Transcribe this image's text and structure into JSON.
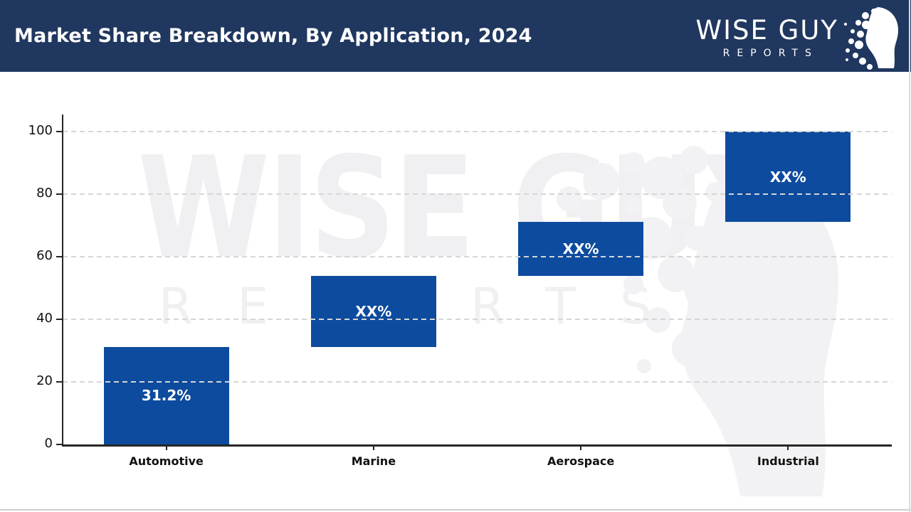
{
  "header": {
    "title": "Market Share Breakdown, By Application, 2024",
    "logo": {
      "line1": "WISE GUY",
      "line2": "REPORTS"
    }
  },
  "watermark": {
    "line1": "WISE GUY",
    "line2": "REPORTS"
  },
  "colors": {
    "header_bg": "#20375f",
    "bar": "#0d4b9e",
    "grid": "#d6d6d6",
    "axis": "#262626",
    "bar_label": "#ffffff",
    "title_text": "#ffffff",
    "tick_label": "#111111",
    "watermark": "#f0f0f2"
  },
  "chart_data": {
    "type": "waterfall",
    "title": "Market Share Breakdown, By Application, 2024",
    "categories": [
      "Automotive",
      "Marine",
      "Aerospace",
      "Industrial"
    ],
    "segments": [
      {
        "category": "Automotive",
        "start": 0,
        "end": 31.2,
        "label": "31.2%"
      },
      {
        "category": "Marine",
        "start": 31.2,
        "end": 53.9,
        "label": "XX%"
      },
      {
        "category": "Aerospace",
        "start": 53.9,
        "end": 71.1,
        "label": "XX%"
      },
      {
        "category": "Industrial",
        "start": 71.1,
        "end": 100,
        "label": "XX%"
      }
    ],
    "yticks": [
      0,
      20,
      40,
      60,
      80,
      100
    ],
    "ylim": [
      0,
      105
    ],
    "xlabel": "",
    "ylabel": "",
    "grid": "horizontal-dashed",
    "legend": "none"
  }
}
